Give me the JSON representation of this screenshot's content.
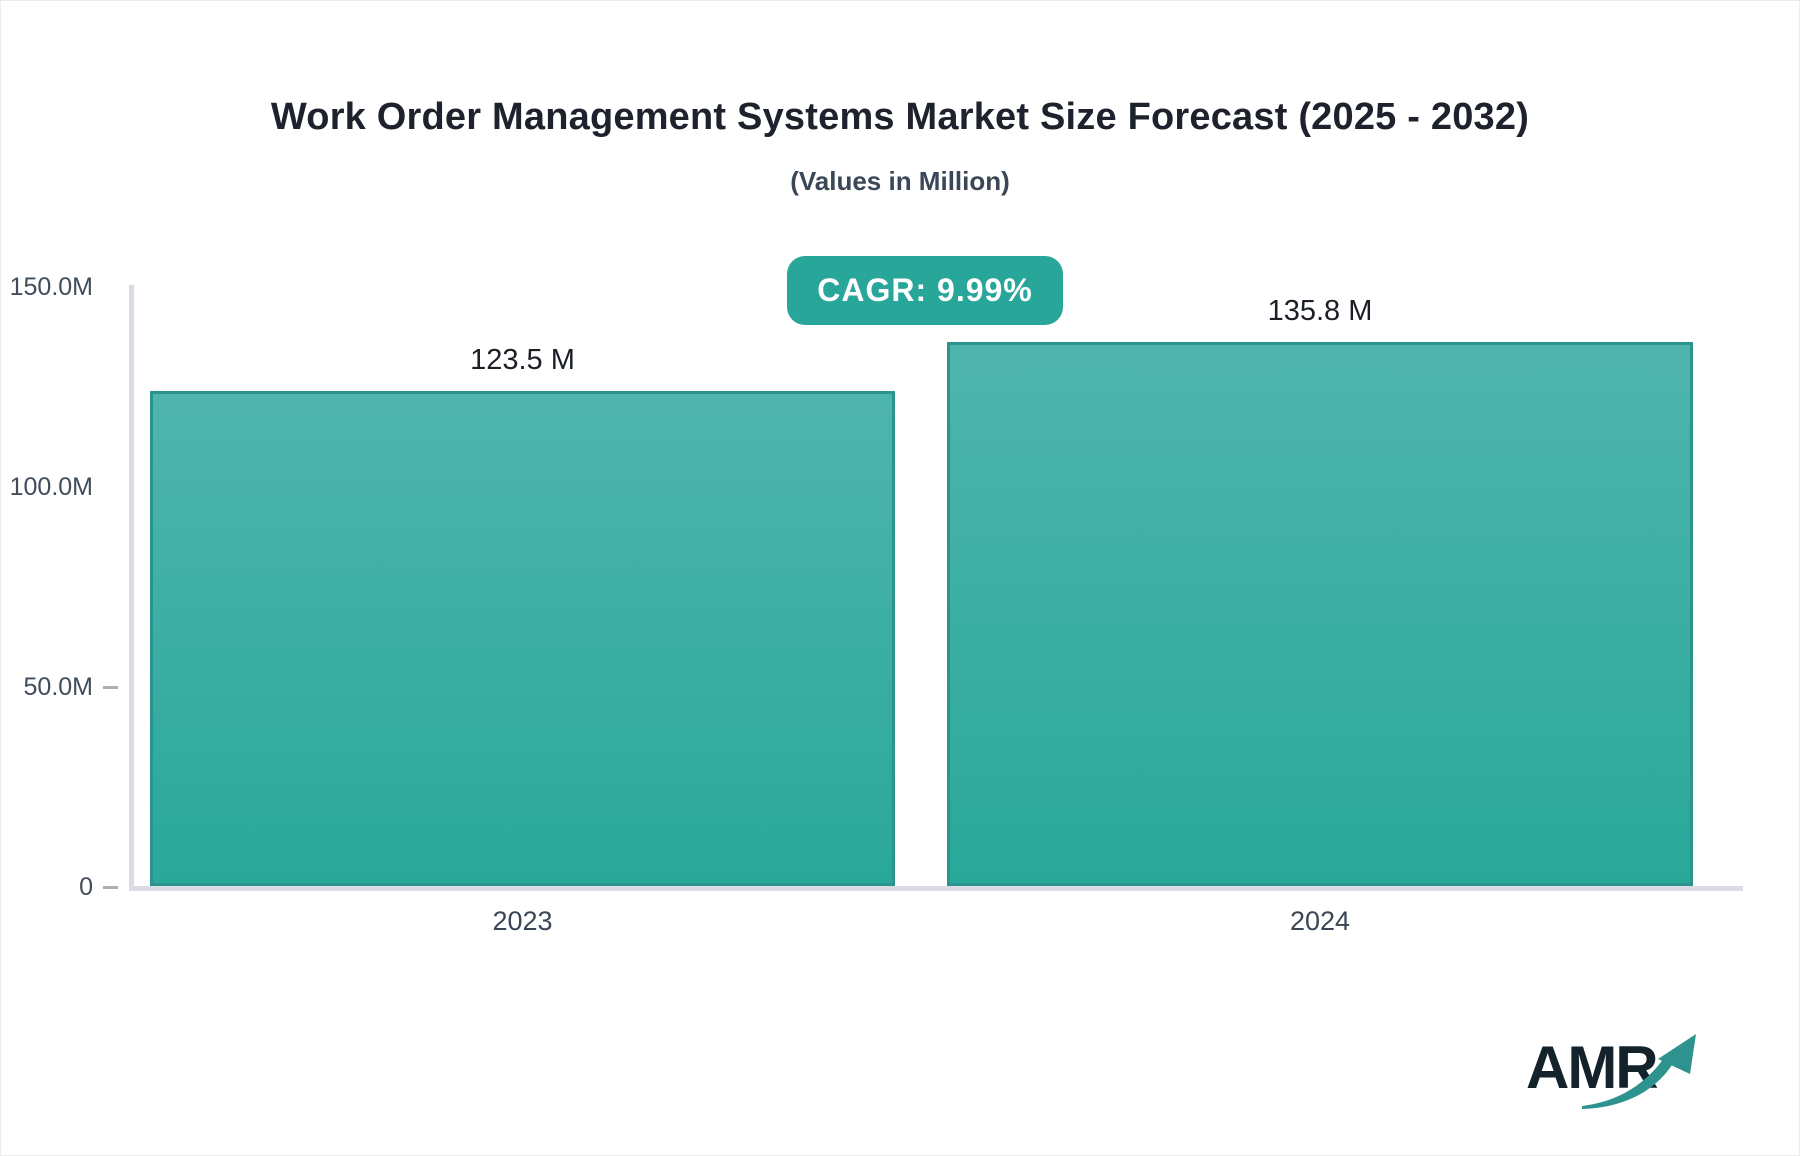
{
  "header": {
    "title": "Work Order Management Systems Market Size Forecast (2025 - 2032)",
    "subtitle": "(Values in Million)"
  },
  "badge": {
    "label": "CAGR: 9.99%"
  },
  "chart_data": {
    "type": "bar",
    "title": "Work Order Management Systems Market Size Forecast (2025 - 2032)",
    "subtitle": "(Values in Million)",
    "unit": "Million",
    "categories": [
      "2023",
      "2024"
    ],
    "values": [
      123.5,
      135.8
    ],
    "value_labels": [
      "123.5 M",
      "135.8 M"
    ],
    "cagr": "9.99%",
    "ylim": [
      0,
      150
    ],
    "yticks": [
      {
        "label": "150.0M",
        "value": 150
      },
      {
        "label": "100.0M",
        "value": 100
      },
      {
        "label": "50.0M",
        "value": 50
      },
      {
        "label": "0",
        "value": 0
      }
    ],
    "grid": false,
    "legend": false,
    "colors": {
      "bar_gradient_top": "#4fb5ac",
      "bar_gradient_bottom": "#29a89a",
      "bar_border": "#2b948e",
      "badge_bg": "#29a69a",
      "badge_text": "#ffffff",
      "axis_line": "#d9dce2",
      "tick": "#a9b0ba",
      "title_text": "#1e222d",
      "label_text": "#3b4757"
    }
  },
  "logo": {
    "text": "AMR"
  }
}
